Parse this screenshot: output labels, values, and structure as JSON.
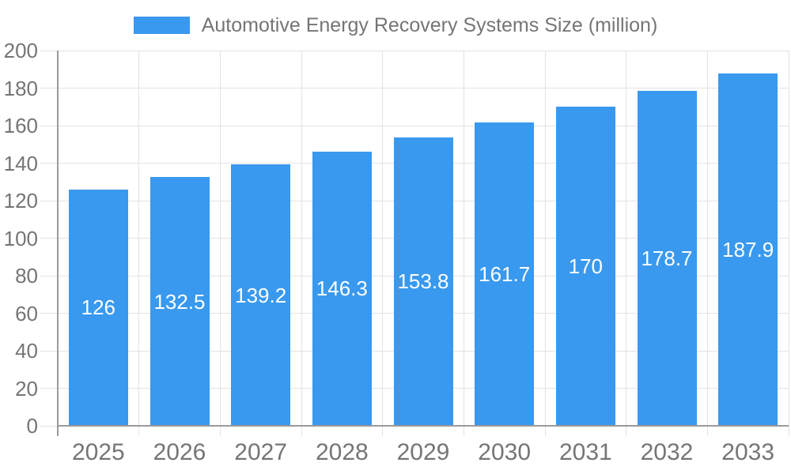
{
  "legend": {
    "label": "Automotive Energy Recovery Systems Size (million)"
  },
  "colors": {
    "bar": "#3999ee",
    "axis_line": "#9a9a9a",
    "grid_line": "#e3e3e3",
    "axis_text": "#757575",
    "value_text": "#ffffff",
    "background": "#ffffff"
  },
  "chart_data": {
    "type": "bar",
    "title": "Automotive Energy Recovery Systems Size (million)",
    "series_name": "Automotive Energy Recovery Systems Size (million)",
    "categories": [
      "2025",
      "2026",
      "2027",
      "2028",
      "2029",
      "2030",
      "2031",
      "2032",
      "2033"
    ],
    "values": [
      126,
      132.5,
      139.2,
      146.3,
      153.8,
      161.7,
      170,
      178.7,
      187.9
    ],
    "value_labels": [
      "126",
      "132.5",
      "139.2",
      "146.3",
      "153.8",
      "161.7",
      "170",
      "178.7",
      "187.9"
    ],
    "xlabel": "",
    "ylabel": "",
    "ylim": [
      0,
      200
    ],
    "ytick_step": 20,
    "yticks": [
      0,
      20,
      40,
      60,
      80,
      100,
      120,
      140,
      160,
      180,
      200
    ],
    "grid": true,
    "legend_position": "top",
    "value_label_position": "inside-center"
  }
}
